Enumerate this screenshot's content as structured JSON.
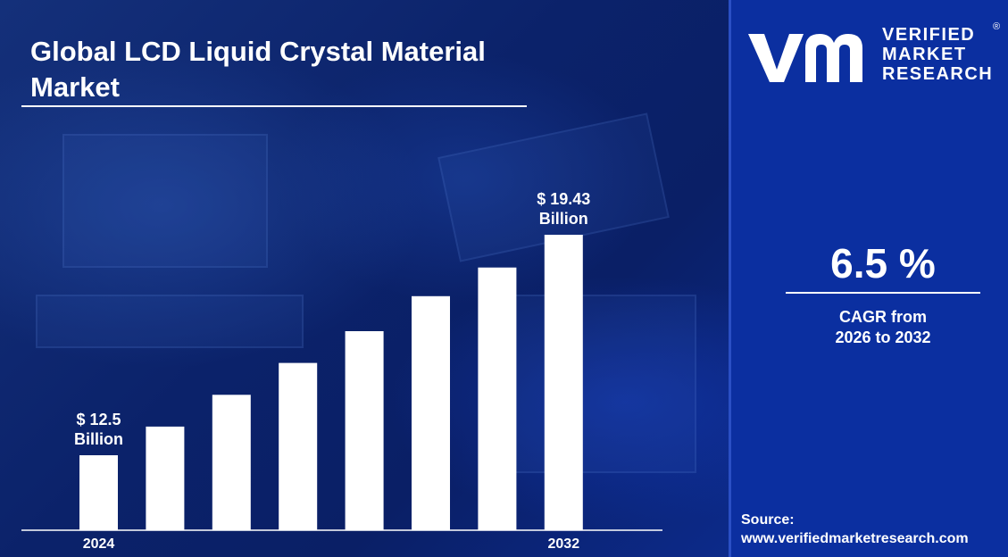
{
  "title": "Global LCD Liquid Crystal Material Market",
  "chart_data": {
    "type": "bar",
    "categories": [
      "2024",
      "",
      "",
      "",
      "",
      "",
      "",
      "2032"
    ],
    "values": [
      12.5,
      13.4,
      14.4,
      15.4,
      16.4,
      17.5,
      18.4,
      19.43
    ],
    "bar_color": "#ffffff",
    "annotations": [
      {
        "index": 0,
        "lines": [
          "$ 12.5",
          "Billion"
        ]
      },
      {
        "index": 7,
        "lines": [
          "$ 19.43",
          "Billion"
        ]
      }
    ],
    "grid": false,
    "legend": "none"
  },
  "cagr": {
    "value": "6.5 %",
    "caption_line1": "CAGR from",
    "caption_line2": "2026 to 2032"
  },
  "logo": {
    "line1": "VERIFIED",
    "line2": "MARKET",
    "line3": "RESEARCH",
    "registered": "®"
  },
  "source": {
    "label": "Source:",
    "url": "www.verifiedmarketresearch.com"
  },
  "colors": {
    "left_background": "#0b226a",
    "right_panel": "#0b2fa0",
    "text": "#ffffff"
  }
}
